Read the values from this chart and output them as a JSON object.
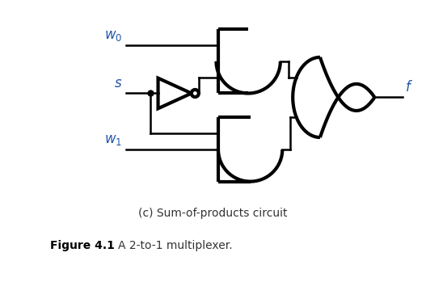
{
  "title_sub": "(c) Sum-of-products circuit",
  "title_fig": "Figure 4.1",
  "title_desc": "    A 2-to-1 multiplexer.",
  "bg_color": "#ffffff",
  "line_color": "#000000",
  "label_color": "#2255aa",
  "fig_width": 5.27,
  "fig_height": 3.49,
  "lw": 1.8,
  "gate_lw": 3.0
}
